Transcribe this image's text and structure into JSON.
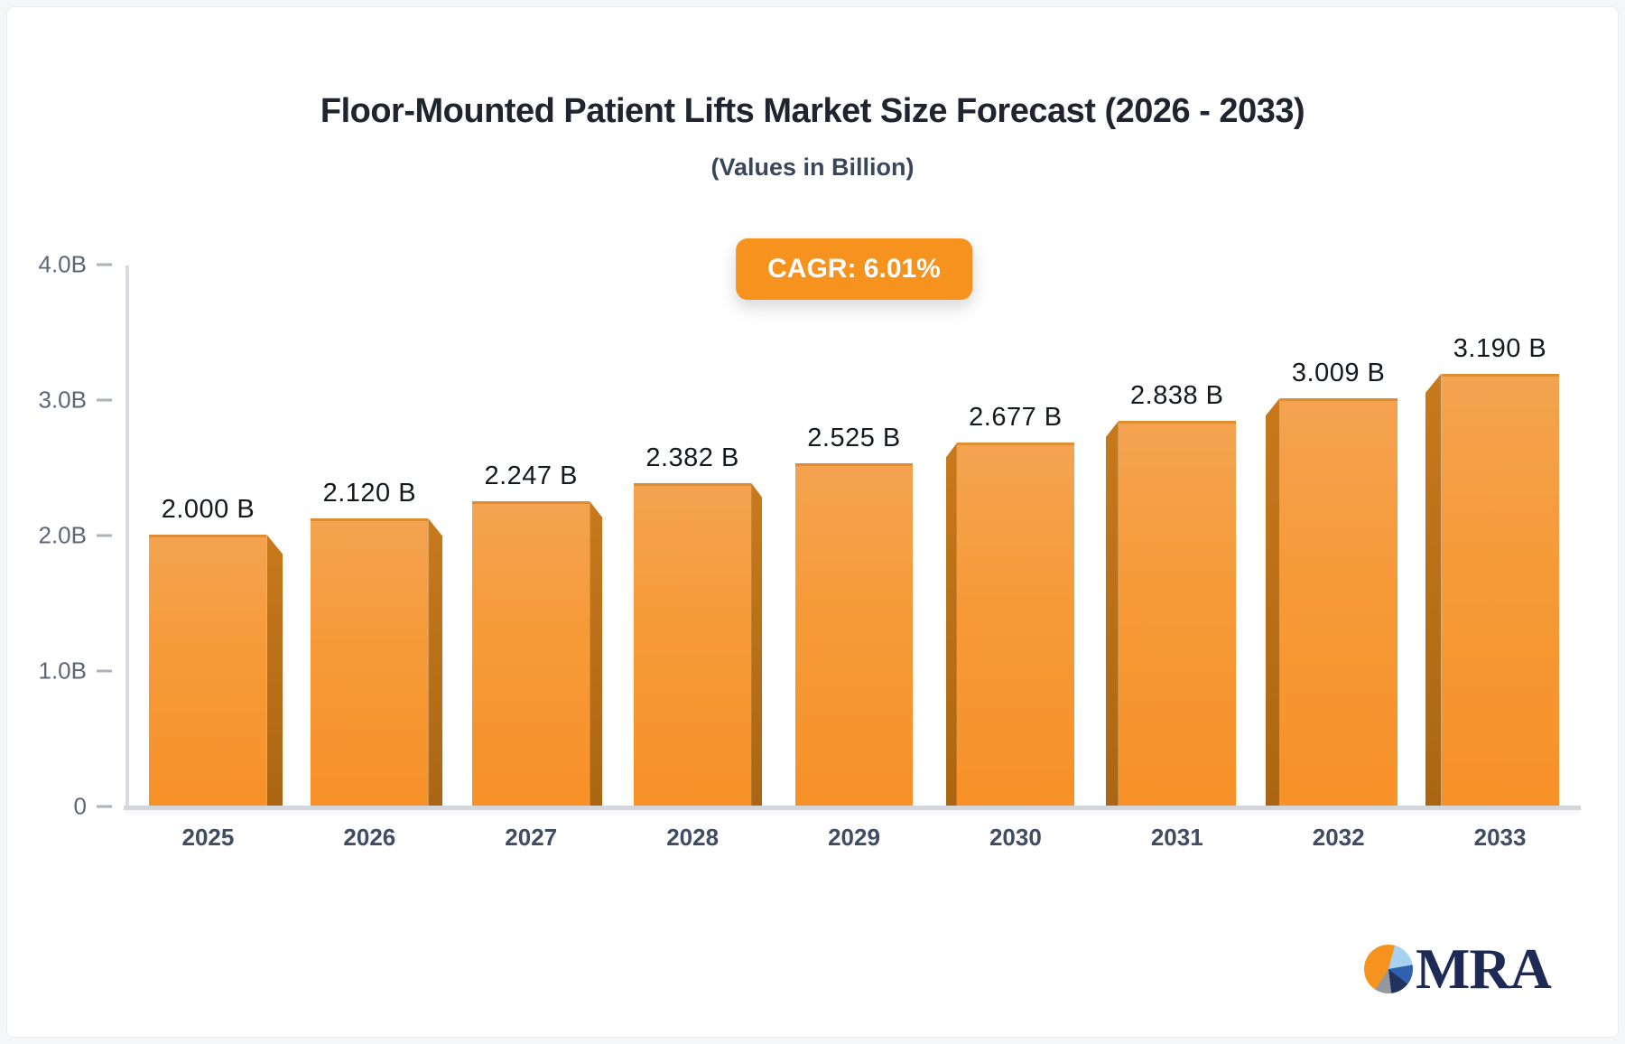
{
  "header": {
    "title": "Floor-Mounted Patient Lifts Market Size Forecast (2026 - 2033)",
    "subtitle": "(Values in Billion)"
  },
  "badge": {
    "label": "CAGR: 6.01%",
    "background": "#f6921e",
    "text_color": "#ffffff"
  },
  "chart_data": {
    "type": "bar",
    "title": "Floor-Mounted Patient Lifts Market Size Forecast (2026 - 2033)",
    "subtitle": "(Values in Billion)",
    "unit": "Billion",
    "categories": [
      "2025",
      "2026",
      "2027",
      "2028",
      "2029",
      "2030",
      "2031",
      "2032",
      "2033"
    ],
    "values": [
      2.0,
      2.12,
      2.247,
      2.382,
      2.525,
      2.677,
      2.838,
      3.009,
      3.19
    ],
    "data_labels": [
      "2.000 B",
      "2.120 B",
      "2.247 B",
      "2.382 B",
      "2.525 B",
      "2.677 B",
      "2.838 B",
      "3.009 B",
      "3.190 B"
    ],
    "ylim": [
      0,
      4.0
    ],
    "yticks": [
      {
        "value": 0,
        "label": "0"
      },
      {
        "value": 1.0,
        "label": "1.0B"
      },
      {
        "value": 2.0,
        "label": "2.0B"
      },
      {
        "value": 3.0,
        "label": "3.0B"
      },
      {
        "value": 4.0,
        "label": "4.0B"
      }
    ],
    "grid": false,
    "legend": false,
    "bar_colors": {
      "front_top": "#f4a351",
      "front_mid": "#f69a38",
      "front_bottom": "#f79128",
      "side_top": "#c8791c",
      "side_bottom": "#ab6613"
    }
  },
  "logo": {
    "text": "MRA",
    "text_color": "#1d2a55",
    "pie_slices": [
      {
        "color": "#f6921e",
        "from": 0,
        "to": 15
      },
      {
        "color": "#a6d2ef",
        "from": 15,
        "to": 80
      },
      {
        "color": "#2f5fae",
        "from": 80,
        "to": 128
      },
      {
        "color": "#20335f",
        "from": 128,
        "to": 173
      },
      {
        "color": "#93979e",
        "from": 173,
        "to": 213
      },
      {
        "color": "#f6921e",
        "from": 213,
        "to": 360
      }
    ]
  }
}
